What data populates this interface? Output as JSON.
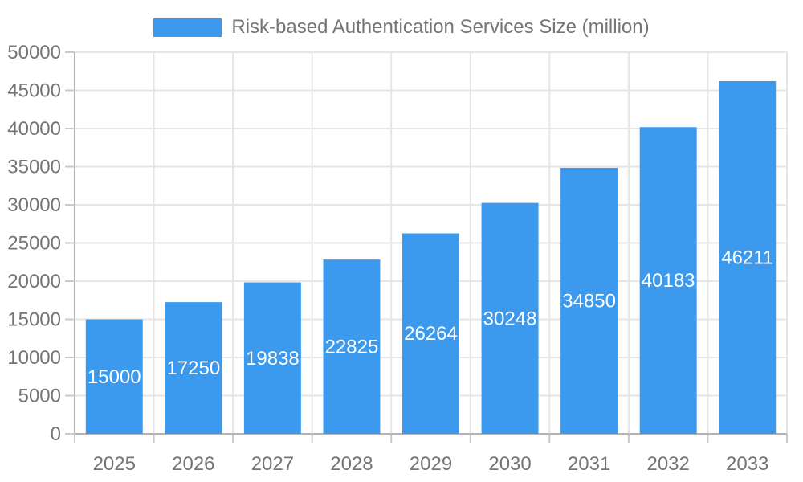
{
  "chart_data": {
    "type": "bar",
    "title": "Risk-based Authentication Services Size (million)",
    "categories": [
      "2025",
      "2026",
      "2027",
      "2028",
      "2029",
      "2030",
      "2031",
      "2032",
      "2033"
    ],
    "values": [
      15000,
      17250,
      19838,
      22825,
      26264,
      30248,
      34850,
      40183,
      46211
    ],
    "xlabel": "",
    "ylabel": "",
    "ylim": [
      0,
      50000
    ],
    "ytick_step": 5000,
    "grid": true,
    "legend_position": "top",
    "bar_color": "#3b99ee",
    "value_label_color": "#ffffff",
    "axis_line_color": "#b3b3b3",
    "tick_mark_color": "#c9c9c9",
    "gridline_color": "#e6e6e6",
    "tick_label_color": "#757575",
    "background_color": "#ffffff"
  }
}
